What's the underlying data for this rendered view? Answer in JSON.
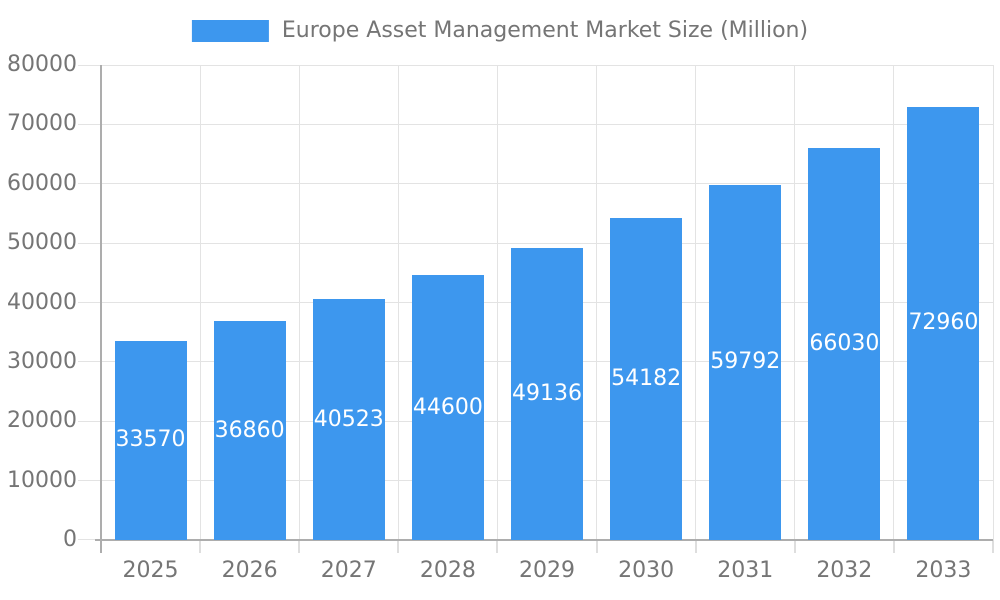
{
  "legend": {
    "label": "Europe Asset Management Market Size (Million)"
  },
  "chart_data": {
    "type": "bar",
    "title": "Europe Asset Management Market Size (Million)",
    "categories": [
      "2025",
      "2026",
      "2027",
      "2028",
      "2029",
      "2030",
      "2031",
      "2032",
      "2033"
    ],
    "series": [
      {
        "name": "Europe Asset Management Market Size (Million)",
        "values": [
          33570,
          36860,
          40523,
          44600,
          49136,
          54182,
          59792,
          66030,
          72960
        ]
      }
    ],
    "value_labels_shown": true,
    "value_label_position": "inside-center",
    "xlabel": "",
    "ylabel": "",
    "ylim": [
      0,
      80000
    ],
    "yticks": [
      0,
      10000,
      20000,
      30000,
      40000,
      50000,
      60000,
      70000,
      80000
    ],
    "grid": true,
    "legend_position": "top-center",
    "colors": {
      "bar": "#3D97EE",
      "grid": "#E3E3E3",
      "axis": "#ADADAD",
      "tick": "#DEDEDE",
      "text": "#757575",
      "value_label": "#FFFFFF",
      "background": "#FFFFFF"
    }
  }
}
